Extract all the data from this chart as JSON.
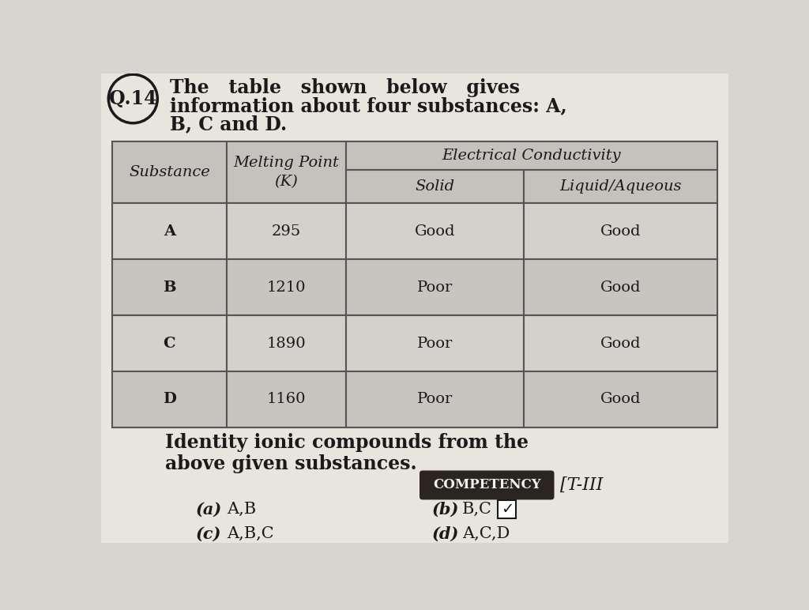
{
  "title_q": "Q.14",
  "col_headers_main": [
    "Substance",
    "Melting Point\n(K)",
    "Electrical Conductivity"
  ],
  "sub_headers": [
    "Solid",
    "Liquid/Aqueous"
  ],
  "rows": [
    [
      "A",
      "295",
      "Good",
      "Good"
    ],
    [
      "B",
      "1210",
      "Poor",
      "Good"
    ],
    [
      "C",
      "1890",
      "Poor",
      "Good"
    ],
    [
      "D",
      "1160",
      "Poor",
      "Good"
    ]
  ],
  "competency_label": "COMPETENCY",
  "tier_label": "[T-III",
  "options": [
    [
      "(a)",
      "A,B"
    ],
    [
      "(b)",
      "B,C"
    ],
    [
      "(c)",
      "A,B,C"
    ],
    [
      "(d)",
      "A,C,D"
    ]
  ],
  "bg_color": "#d8d5d0",
  "page_color": "#e8e5df",
  "table_row_light": "#d4d1cc",
  "table_row_dark": "#c8c5c0",
  "header_bg": "#c5c2be",
  "text_color": "#1a1a1a",
  "competency_bg": "#2a2520",
  "competency_text": "#f0f0f0",
  "border_color": "#555555"
}
